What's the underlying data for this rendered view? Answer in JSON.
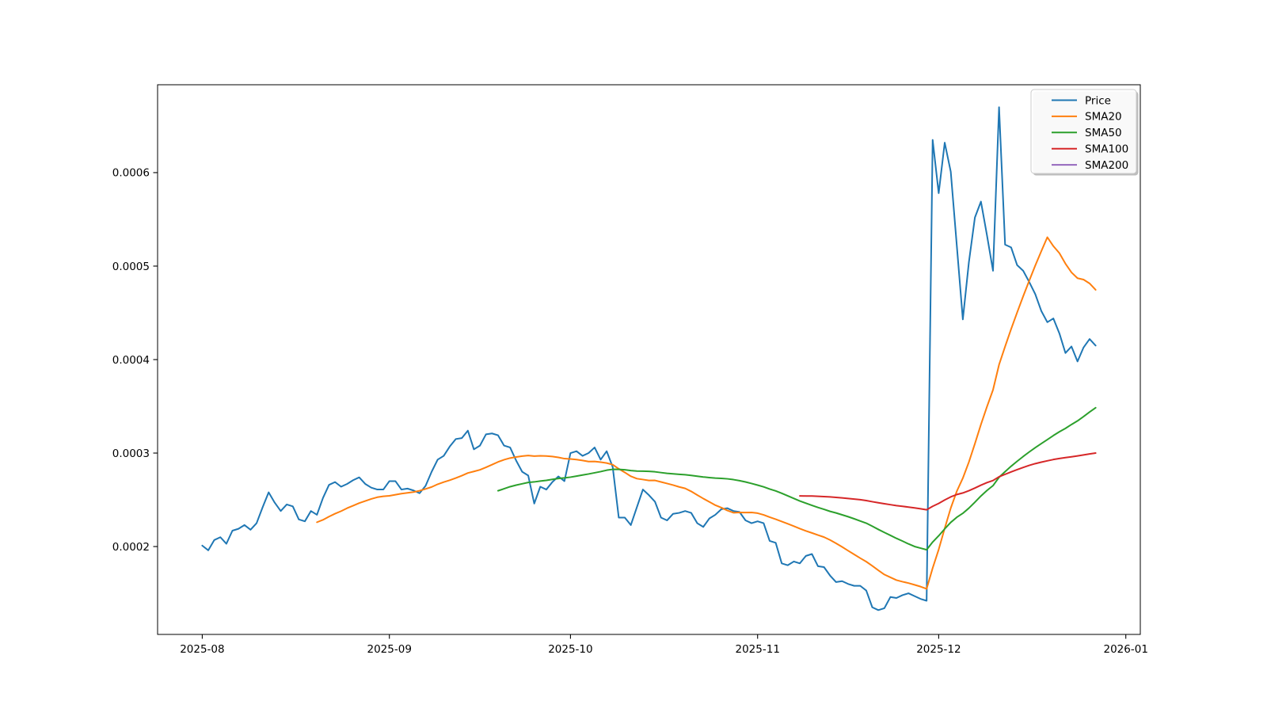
{
  "figure": {
    "background": "#ffffff",
    "legend": {
      "position": "upper right",
      "entries": [
        {
          "label": "Price",
          "color": "#1f77b4"
        },
        {
          "label": "SMA20",
          "color": "#ff7f0e"
        },
        {
          "label": "SMA50",
          "color": "#2ca02c"
        },
        {
          "label": "SMA100",
          "color": "#d62728"
        },
        {
          "label": "SMA200",
          "color": "#9467bd"
        }
      ]
    }
  },
  "chart_data": {
    "type": "line",
    "title": "",
    "xlabel": "",
    "ylabel": "",
    "grid": false,
    "legend_position": "upper right",
    "start_date": "2025-08-01",
    "end_date": "2025-12-27",
    "frequency": "daily",
    "ylim": [
      0.000106,
      0.000694
    ],
    "y_ticks": [
      {
        "value": 0.0002,
        "label": "0.0002"
      },
      {
        "value": 0.0003,
        "label": "0.0003"
      },
      {
        "value": 0.0004,
        "label": "0.0004"
      },
      {
        "value": 0.0005,
        "label": "0.0005"
      },
      {
        "value": 0.0006,
        "label": "0.0006"
      }
    ],
    "x_ticks": [
      {
        "day_offset": 0,
        "label": "2025-08"
      },
      {
        "day_offset": 31,
        "label": "2025-09"
      },
      {
        "day_offset": 61,
        "label": "2025-10"
      },
      {
        "day_offset": 92,
        "label": "2025-11"
      },
      {
        "day_offset": 122,
        "label": "2025-12"
      },
      {
        "day_offset": 153,
        "label": "2026-01"
      }
    ],
    "series": [
      {
        "name": "Price",
        "color": "#1f77b4",
        "kind": "raw",
        "values": [
          0.000201,
          0.000196,
          0.000207,
          0.00021,
          0.000203,
          0.000217,
          0.000219,
          0.000223,
          0.000218,
          0.000225,
          0.000242,
          0.000258,
          0.000247,
          0.000238,
          0.000245,
          0.000243,
          0.000229,
          0.000227,
          0.000238,
          0.000234,
          0.000252,
          0.000266,
          0.000269,
          0.000264,
          0.000267,
          0.000271,
          0.000274,
          0.000267,
          0.000263,
          0.000261,
          0.000261,
          0.00027,
          0.00027,
          0.000261,
          0.000262,
          0.00026,
          0.000257,
          0.000265,
          0.00028,
          0.000293,
          0.000297,
          0.000307,
          0.000315,
          0.000316,
          0.000324,
          0.000304,
          0.000308,
          0.00032,
          0.000321,
          0.000319,
          0.000308,
          0.000306,
          0.000292,
          0.00028,
          0.000276,
          0.000246,
          0.000264,
          0.000261,
          0.000269,
          0.000275,
          0.00027,
          0.0003,
          0.000302,
          0.000297,
          0.0003,
          0.000306,
          0.000293,
          0.000302,
          0.000285,
          0.000231,
          0.000231,
          0.000223,
          0.000242,
          0.000261,
          0.000255,
          0.000248,
          0.000231,
          0.000228,
          0.000235,
          0.000236,
          0.000238,
          0.000236,
          0.000225,
          0.000221,
          0.00023,
          0.000234,
          0.00024,
          0.000241,
          0.000238,
          0.000237,
          0.000228,
          0.000225,
          0.000227,
          0.000225,
          0.000206,
          0.000204,
          0.000182,
          0.00018,
          0.000184,
          0.000182,
          0.00019,
          0.000192,
          0.000179,
          0.000178,
          0.000169,
          0.000162,
          0.000163,
          0.00016,
          0.000158,
          0.000158,
          0.000153,
          0.000135,
          0.000132,
          0.000134,
          0.000146,
          0.000145,
          0.000148,
          0.00015,
          0.000147,
          0.000144,
          0.000142,
          0.000635,
          0.000578,
          0.000632,
          0.000601,
          0.000522,
          0.000443,
          0.000504,
          0.000552,
          0.000569,
          0.000533,
          0.000495,
          0.00067,
          0.000523,
          0.00052,
          0.000501,
          0.000495,
          0.000483,
          0.00047,
          0.000452,
          0.00044,
          0.000444,
          0.000428,
          0.000407,
          0.000414,
          0.000398,
          0.000413,
          0.000422,
          0.000415
        ]
      },
      {
        "name": "SMA20",
        "color": "#ff7f0e",
        "kind": "sma",
        "window": 20
      },
      {
        "name": "SMA50",
        "color": "#2ca02c",
        "kind": "sma",
        "window": 50
      },
      {
        "name": "SMA100",
        "color": "#d62728",
        "kind": "sma",
        "window": 100
      },
      {
        "name": "SMA200",
        "color": "#9467bd",
        "kind": "sma",
        "window": 200
      }
    ]
  }
}
